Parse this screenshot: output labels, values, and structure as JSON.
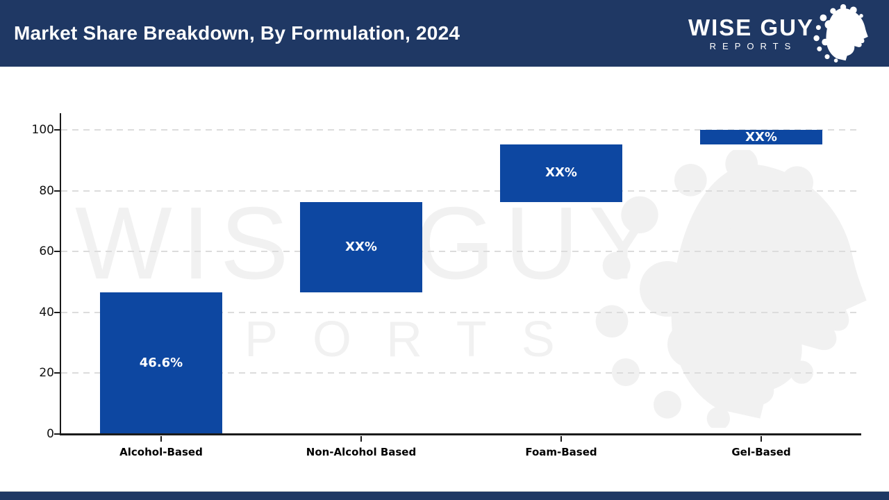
{
  "header": {
    "title": "Market Share Breakdown, By Formulation, 2024",
    "logo": {
      "line1": "WISE GUY",
      "line2": "REPORTS"
    }
  },
  "watermark": {
    "line1": "WISE GUY",
    "line2": "REPORTS"
  },
  "chart_data": {
    "type": "bar",
    "subtype": "waterfall",
    "title": "Market Share Breakdown, By Formulation, 2024",
    "categories": [
      "Alcohol-Based",
      "Non-Alcohol Based",
      "Foam-Based",
      "Gel-Based"
    ],
    "segments": [
      {
        "category": "Alcohol-Based",
        "start": 0,
        "end": 46.6,
        "value": 46.6,
        "label": "46.6%"
      },
      {
        "category": "Non-Alcohol Based",
        "start": 46.6,
        "end": 76.3,
        "value": 29.7,
        "label": "XX%"
      },
      {
        "category": "Foam-Based",
        "start": 76.3,
        "end": 95.2,
        "value": 18.9,
        "label": "XX%"
      },
      {
        "category": "Gel-Based",
        "start": 95.2,
        "end": 100,
        "value": 4.8,
        "label": "XX%"
      }
    ],
    "ylim": [
      0,
      100
    ],
    "yticks": [
      0,
      20,
      40,
      60,
      80,
      100
    ],
    "grid": "horizontal-dashed",
    "legend": "none",
    "bar_color": "#0d47a1",
    "bar_label_color": "#ffffff"
  },
  "colors": {
    "header_bg": "#1f3864",
    "footer_bg": "#1f3864",
    "bar": "#0d47a1",
    "grid": "#dcdcdc",
    "axis": "#1a1a1a",
    "watermark": "#f1f1f1"
  }
}
